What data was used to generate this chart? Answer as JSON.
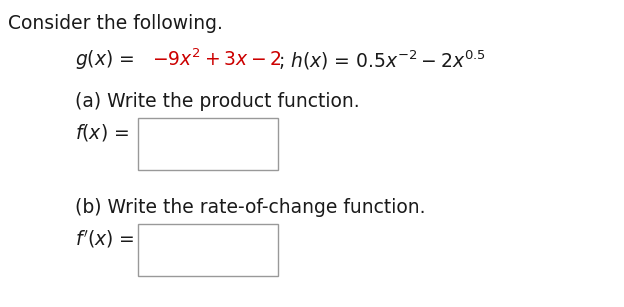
{
  "background_color": "#ffffff",
  "consider_text": "Consider the following.",
  "formula_fontsize": 13.5,
  "text_fontsize": 13.5,
  "red_color": "#cc0000",
  "black_color": "#1a1a1a",
  "box_edge_color": "#999999",
  "figsize": [
    6.24,
    3.07
  ],
  "dpi": 100
}
